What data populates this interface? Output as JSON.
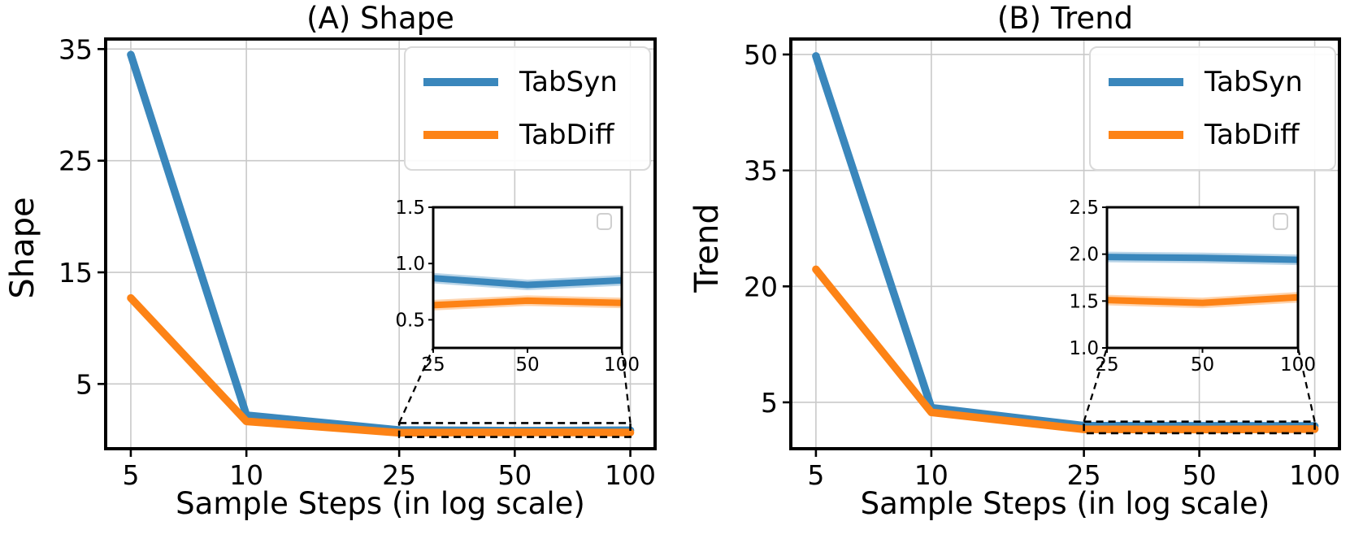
{
  "figure": {
    "background": "#ffffff",
    "colors": {
      "tabsyn": "#3a87bc",
      "tabdiff": "#fd8316",
      "grid": "#c9c9c9",
      "spine": "#000000",
      "zoom_indicator": "#000000",
      "legend_border": "#d9d9d9"
    }
  },
  "chart_data": [
    {
      "type": "line",
      "title": "(A) Shape",
      "xlabel": "Sample Steps (in log scale)",
      "ylabel": "Shape",
      "x_scale": "log",
      "grid": true,
      "legend_position": "upper right",
      "x": [
        5,
        10,
        25,
        50,
        100
      ],
      "xtick_labels": [
        "5",
        "10",
        "25",
        "50",
        "100"
      ],
      "yticks": [
        5,
        15,
        25,
        35
      ],
      "ytick_labels": [
        "5",
        "15",
        "25",
        "35"
      ],
      "xlim": [
        4.3,
        116
      ],
      "ylim": [
        -0.8,
        35.9
      ],
      "series": [
        {
          "name": "TabSyn",
          "color": "#3a87bc",
          "values": [
            34.5,
            2.2,
            0.87,
            0.81,
            0.85
          ]
        },
        {
          "name": "TabDiff",
          "color": "#fd8316",
          "values": [
            12.7,
            1.65,
            0.63,
            0.67,
            0.65
          ]
        }
      ],
      "inset": {
        "x_scale": "log",
        "xlim": [
          25,
          100
        ],
        "ylim": [
          0.25,
          1.5
        ],
        "x": [
          25,
          50,
          100
        ],
        "xtick_labels": [
          "25",
          "50",
          "100"
        ],
        "yticks": [
          0.5,
          1.0,
          1.5
        ],
        "ytick_labels": [
          "0.5",
          "1.0",
          "1.5"
        ],
        "series": [
          {
            "name": "TabSyn",
            "values": [
              0.87,
              0.81,
              0.85
            ]
          },
          {
            "name": "TabDiff",
            "values": [
              0.63,
              0.67,
              0.65
            ]
          }
        ]
      }
    },
    {
      "type": "line",
      "title": "(B) Trend",
      "xlabel": "Sample Steps (in log scale)",
      "ylabel": "Trend",
      "x_scale": "log",
      "grid": true,
      "legend_position": "upper right",
      "x": [
        5,
        10,
        25,
        50,
        100
      ],
      "xtick_labels": [
        "5",
        "10",
        "25",
        "50",
        "100"
      ],
      "yticks": [
        5,
        20,
        35,
        50
      ],
      "ytick_labels": [
        "5",
        "20",
        "35",
        "50"
      ],
      "xlim": [
        4.3,
        116
      ],
      "ylim": [
        -1,
        52
      ],
      "series": [
        {
          "name": "TabSyn",
          "color": "#3a87bc",
          "values": [
            49.8,
            4.3,
            1.97,
            1.96,
            1.94
          ]
        },
        {
          "name": "TabDiff",
          "color": "#fd8316",
          "values": [
            22.2,
            3.7,
            1.51,
            1.48,
            1.54
          ]
        }
      ],
      "inset": {
        "x_scale": "log",
        "xlim": [
          25,
          100
        ],
        "ylim": [
          1.0,
          2.5
        ],
        "x": [
          25,
          50,
          100
        ],
        "xtick_labels": [
          "25",
          "50",
          "100"
        ],
        "yticks": [
          1.0,
          1.5,
          2.0,
          2.5
        ],
        "ytick_labels": [
          "1.0",
          "1.5",
          "2.0",
          "2.5"
        ],
        "series": [
          {
            "name": "TabSyn",
            "values": [
              1.97,
              1.96,
              1.94
            ]
          },
          {
            "name": "TabDiff",
            "values": [
              1.51,
              1.48,
              1.54
            ]
          }
        ]
      }
    }
  ]
}
